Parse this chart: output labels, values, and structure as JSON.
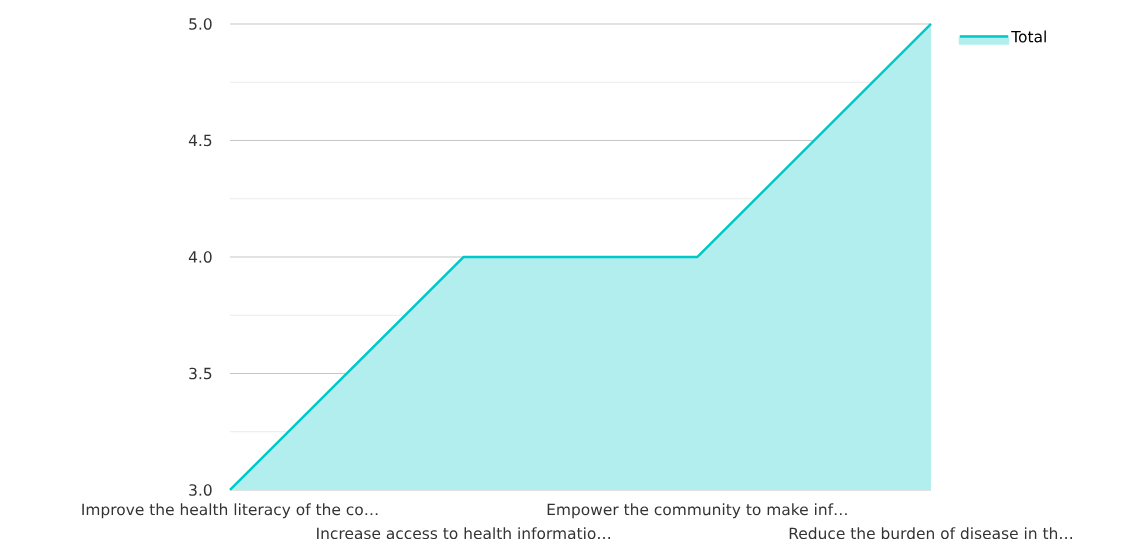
{
  "chart_data": {
    "type": "area",
    "categories": [
      "Improve the health literacy of the co…",
      "Increase access to health informatio…",
      "Empower the community to make inf…",
      "Reduce the burden of disease in th…"
    ],
    "series": [
      {
        "name": "Total",
        "color": "#00c8c8",
        "values": [
          3,
          4,
          4,
          5
        ]
      }
    ],
    "ylim": [
      3,
      5
    ],
    "yticks": [
      {
        "value": 3,
        "label": "3.0"
      },
      {
        "value": 3.25,
        "label": null
      },
      {
        "value": 3.5,
        "label": "3.5"
      },
      {
        "value": 3.75,
        "label": null
      },
      {
        "value": 4,
        "label": "4.0"
      },
      {
        "value": 4.25,
        "label": null
      },
      {
        "value": 4.5,
        "label": "4.5"
      },
      {
        "value": 4.75,
        "label": null
      },
      {
        "value": 5,
        "label": "5.0"
      }
    ],
    "grid": "y",
    "legend": "top right",
    "marker": "none",
    "line_style": "solid"
  }
}
